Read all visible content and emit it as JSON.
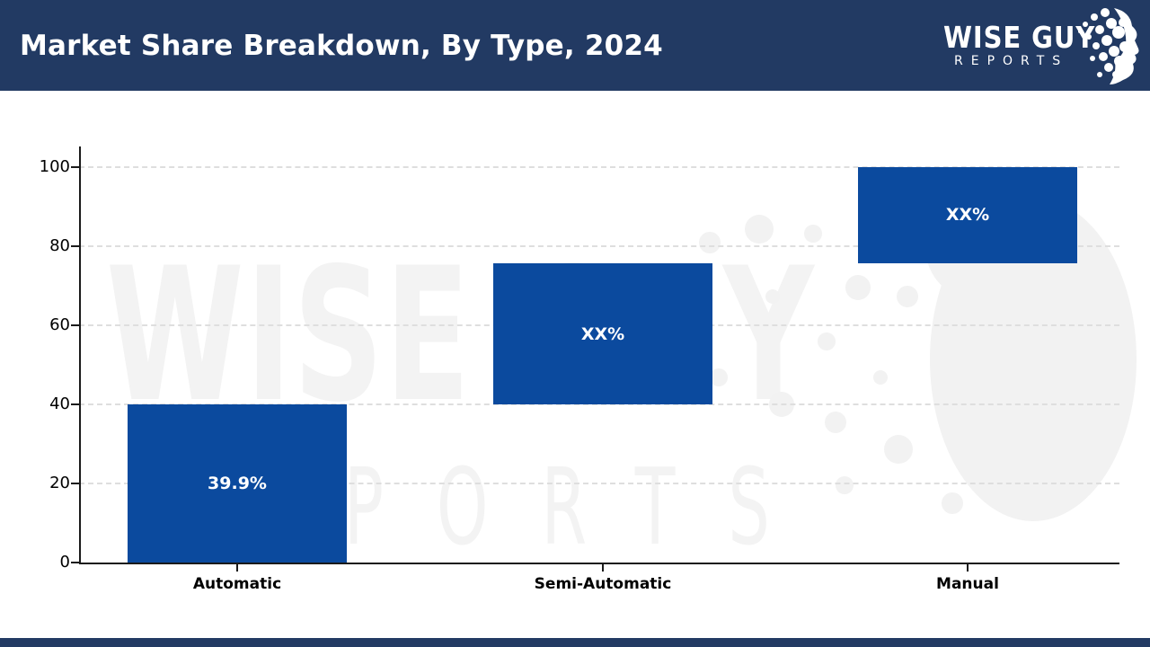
{
  "header": {
    "title": "Market Share Breakdown, By Type, 2024",
    "bg_color": "#223a63",
    "logo": {
      "top": "WISE GUY",
      "bottom": "REPORTS"
    }
  },
  "watermark": {
    "top": "WISE GUY",
    "bottom": "REPORTS"
  },
  "chart_data": {
    "type": "bar",
    "subtype": "floating-waterfall-bars",
    "title": "Market Share Breakdown, By Type, 2024",
    "categories": [
      "Automatic",
      "Semi-Automatic",
      "Manual"
    ],
    "segments": [
      {
        "category": "Automatic",
        "start": 0,
        "end": 39.9,
        "label": "39.9%"
      },
      {
        "category": "Semi-Automatic",
        "start": 39.9,
        "end": 75.5,
        "label": "XX%"
      },
      {
        "category": "Manual",
        "start": 75.5,
        "end": 100,
        "label": "XX%"
      }
    ],
    "yticks": [
      0,
      20,
      40,
      60,
      80,
      100
    ],
    "ylim": [
      0,
      105
    ],
    "xlabel": "",
    "ylabel": "",
    "grid": "horizontal-dashed",
    "legend": "none",
    "bar_color": "#0b4a9e",
    "bar_label_color": "#ffffff",
    "axis_color": "#1a1a1a"
  }
}
